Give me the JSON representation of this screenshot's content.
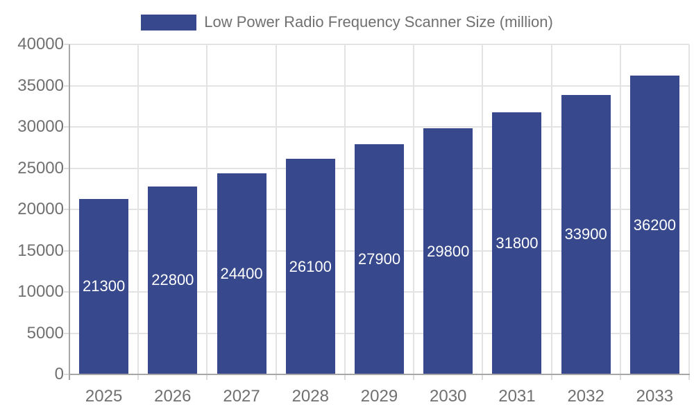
{
  "chart_data": {
    "type": "bar",
    "title": "Low Power Radio Frequency Scanner Size (million)",
    "legend_position": "top",
    "categories": [
      "2025",
      "2026",
      "2027",
      "2028",
      "2029",
      "2030",
      "2031",
      "2032",
      "2033"
    ],
    "series": [
      {
        "name": "Low Power Radio Frequency Scanner Size (million)",
        "values": [
          21300,
          22800,
          24400,
          26100,
          27900,
          29800,
          31800,
          33900,
          36200
        ],
        "color": "#37498c"
      }
    ],
    "xlabel": "",
    "ylabel": "",
    "ylim": [
      0,
      40000
    ],
    "ytick_step": 5000,
    "ytick_labels": [
      "0",
      "5000",
      "10000",
      "15000",
      "20000",
      "25000",
      "30000",
      "35000",
      "40000"
    ],
    "grid": true,
    "bar_label_position": "inside-middle",
    "colors": {
      "bar": "#37498c",
      "axis_line": "#a6a6a6",
      "grid_line": "#e3e3e3",
      "tick_line": "#dddddd",
      "axis_text": "#707070",
      "legend_text": "#707070",
      "bar_label_text": "#ffffff",
      "background": "#ffffff"
    }
  }
}
